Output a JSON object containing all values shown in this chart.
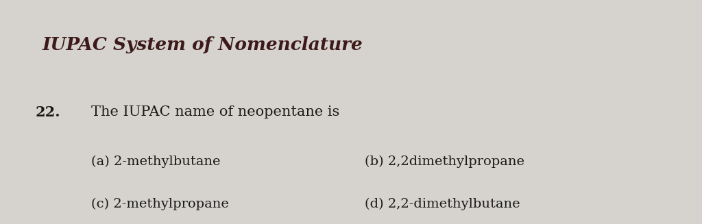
{
  "background_color": "#d6d3ce",
  "page_color": "#dedad5",
  "title": "IUPAC System of Nomenclature",
  "title_fontsize": 19,
  "title_color": "#3d1a1a",
  "title_fontweight": "bold",
  "question_number": "22.",
  "question_text": "The IUPAC name of neopentane is",
  "q_fontsize": 15,
  "q_color": "#1a1a1a",
  "options": [
    {
      "label": "(a) 2-methylbutane",
      "col": 0,
      "row": 0
    },
    {
      "label": "(b) 2,2dimethylpropane",
      "col": 1,
      "row": 0
    },
    {
      "label": "(c) 2-methylpropane",
      "col": 0,
      "row": 1
    },
    {
      "label": "(d) 2,2-dimethylbutane",
      "col": 1,
      "row": 1
    }
  ],
  "option_fontsize": 14,
  "option_color": "#1a1a1a",
  "arc_color": "#2a2a2a"
}
